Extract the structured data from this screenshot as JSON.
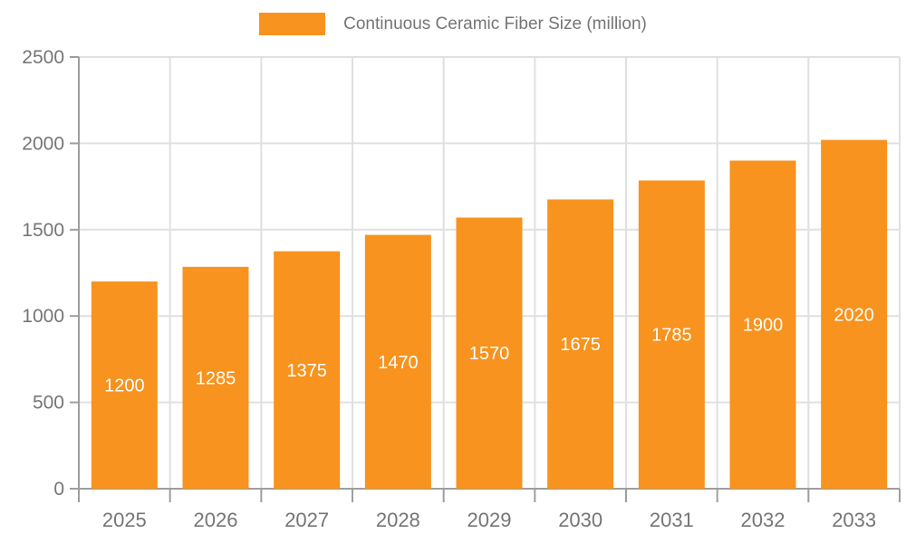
{
  "chart_data": {
    "type": "bar",
    "title": "Continuous Ceramic Fiber Size (million)",
    "legend_position": "top-center",
    "categories": [
      "2025",
      "2026",
      "2027",
      "2028",
      "2029",
      "2030",
      "2031",
      "2032",
      "2033"
    ],
    "values": [
      1200,
      1285,
      1375,
      1470,
      1570,
      1675,
      1785,
      1900,
      2020
    ],
    "value_labels": [
      "1200",
      "1285",
      "1375",
      "1470",
      "1570",
      "1675",
      "1785",
      "1900",
      "2020"
    ],
    "xlabel": "",
    "ylabel": "",
    "ylim": [
      0,
      2500
    ],
    "ytick_step": 500,
    "ytick_labels": [
      "0",
      "500",
      "1000",
      "1500",
      "2000",
      "2500"
    ],
    "grid": true,
    "colors": {
      "bar": "#F7931E",
      "axis": "#9E9E9E",
      "grid": "#E0E0E0",
      "tick_text": "#757575",
      "value_text": "#FFFFFF",
      "background": "#FFFFFF"
    }
  }
}
